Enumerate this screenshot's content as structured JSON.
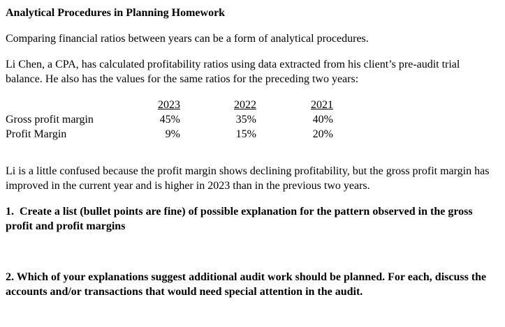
{
  "document": {
    "title": "Analytical Procedures in Planning Homework",
    "intro": "Comparing financial ratios between years can be a form of analytical procedures.",
    "scenario": "Li Chen, a CPA, has calculated profitability ratios using data extracted from his client’s pre-audit trial balance. He also has the values for the same ratios for the preceding two years:",
    "table": {
      "columns": [
        "2023",
        "2022",
        "2021"
      ],
      "rows": [
        {
          "label": "Gross profit margin",
          "values": [
            "45%",
            "35%",
            "40%"
          ]
        },
        {
          "label": "Profit Margin",
          "values": [
            "9%",
            "15%",
            "20%"
          ]
        }
      ]
    },
    "analysis": "Li is a little confused because the profit margin shows declining profitability, but the gross profit margin has improved in the current year and is higher in 2023 than in the previous two years.",
    "question1": "1.  Create a list (bullet points are fine) of possible explanation for the pattern observed in the gross profit and profit margins",
    "question2": "2. Which of your explanations suggest additional audit work should be planned. For each, discuss the accounts and/or transactions that would need special attention in the audit."
  }
}
